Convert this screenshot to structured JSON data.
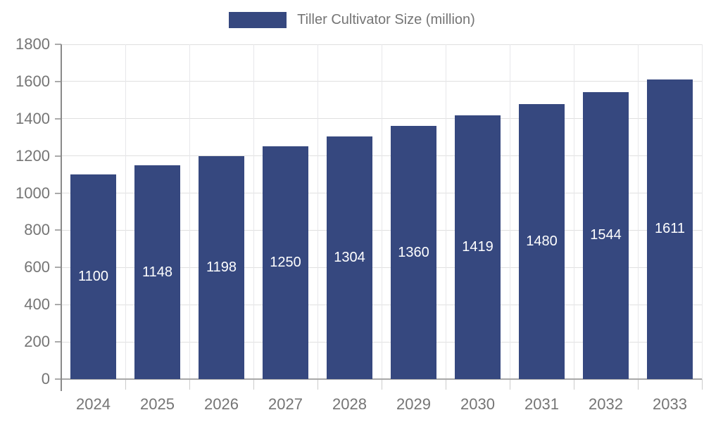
{
  "legend": {
    "label": "Tiller Cultivator Size (million)"
  },
  "chart_data": {
    "type": "bar",
    "title": "Tiller Cultivator Size (million)",
    "categories": [
      "2024",
      "2025",
      "2026",
      "2027",
      "2028",
      "2029",
      "2030",
      "2031",
      "2032",
      "2033"
    ],
    "series": [
      {
        "name": "Tiller Cultivator Size (million)",
        "values": [
          1100,
          1148,
          1198,
          1250,
          1304,
          1360,
          1419,
          1480,
          1544,
          1611
        ]
      }
    ],
    "value_labels": [
      "1100",
      "1148",
      "1198",
      "1250",
      "1304",
      "1360",
      "1419",
      "1480",
      "1544",
      "1611"
    ],
    "xlabel": "",
    "ylabel": "",
    "ylim": [
      0,
      1800
    ],
    "yticks": [
      0,
      200,
      400,
      600,
      800,
      1000,
      1200,
      1400,
      1600,
      1800
    ],
    "grid": true,
    "legend_position": "top-center",
    "colors": {
      "bar": "#36487F",
      "bar_label": "#ffffff",
      "axis_text": "#757575",
      "grid_h": "#e0e0e0",
      "grid_v": "#e7e7ea",
      "axis_line": "#a8a8a8"
    }
  }
}
